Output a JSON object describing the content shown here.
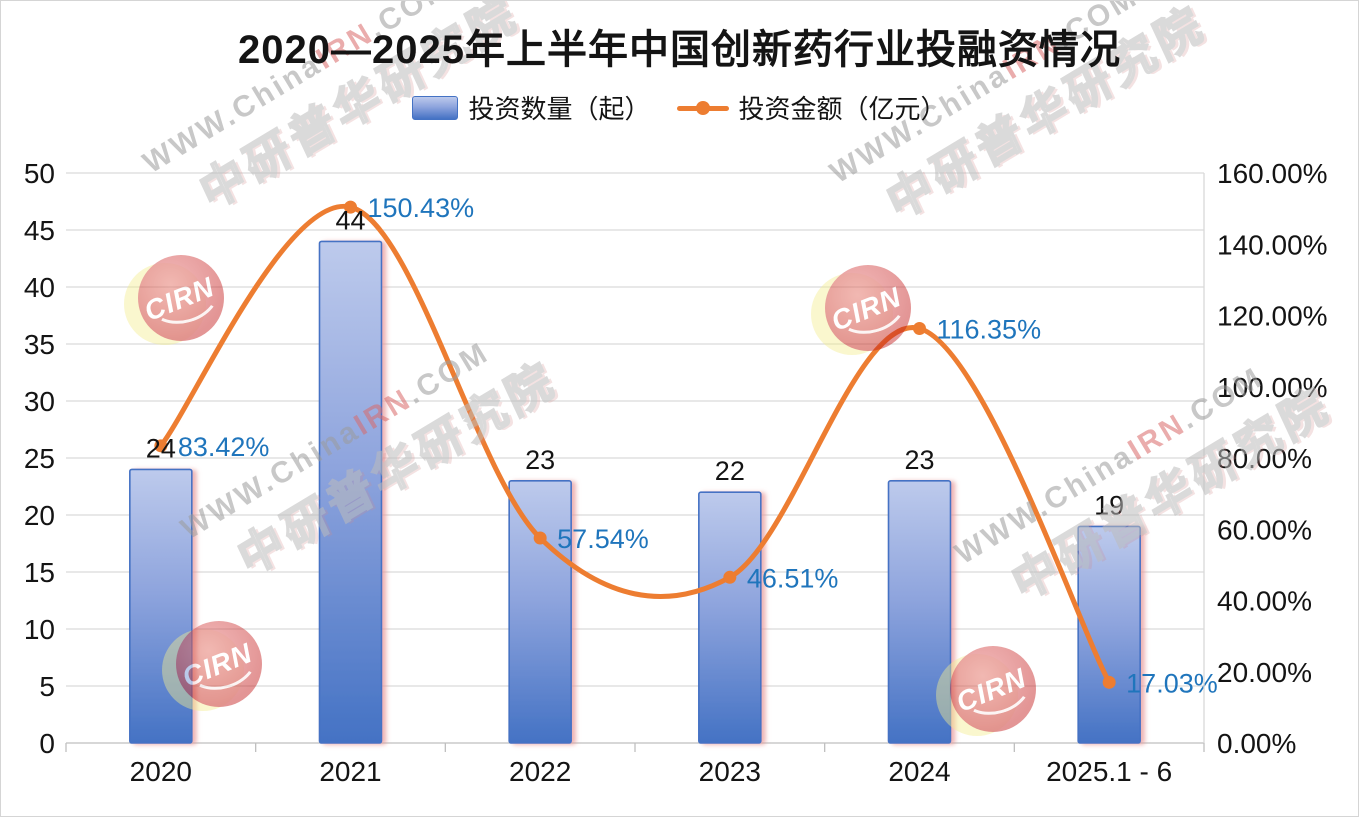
{
  "title": "2020—2025年上半年中国创新药行业投融资情况",
  "legend": {
    "bar_label": "投资数量（起）",
    "line_label": "投资金额（亿元）"
  },
  "colors": {
    "bar_top": "#bdcaec",
    "bar_bottom": "#4472c4",
    "bar_border": "#4472c4",
    "bar_glow": "#e89a9a",
    "line": "#ed7d31",
    "pct_label": "#1f75bc",
    "value_label": "#141414",
    "axis_text": "#141414",
    "gridline": "#d9d9d9",
    "axis_line": "#bfbfbf"
  },
  "watermark": {
    "en_prefix": "WWW.China",
    "en_red": "IRN",
    "en_suffix": ".COM",
    "cn": "中研普华研究院",
    "logo_text": "CIRN"
  },
  "chart_data": {
    "type": "bar",
    "subtype": "bar+smooth-line, dual axis",
    "categories": [
      "2020",
      "2021",
      "2022",
      "2023",
      "2024",
      "2025.1 - 6"
    ],
    "series": [
      {
        "name": "投资数量（起）",
        "type": "bar",
        "axis": "left",
        "values": [
          24,
          44,
          23,
          22,
          23,
          19
        ],
        "labels": [
          "24",
          "44",
          "23",
          "22",
          "23",
          "19"
        ]
      },
      {
        "name": "投资金额（亿元）",
        "type": "line",
        "axis": "right",
        "values": [
          83.42,
          150.43,
          57.54,
          46.51,
          116.35,
          17.03
        ],
        "labels": [
          "83.42%",
          "150.43%",
          "57.54%",
          "46.51%",
          "116.35%",
          "17.03%"
        ]
      }
    ],
    "left_axis": {
      "min": 0,
      "max": 50,
      "step": 5,
      "ticks": [
        "0",
        "5",
        "10",
        "15",
        "20",
        "25",
        "30",
        "35",
        "40",
        "45",
        "50"
      ]
    },
    "right_axis": {
      "min": 0,
      "max": 160,
      "step": 20,
      "ticks": [
        "0.00%",
        "20.00%",
        "40.00%",
        "60.00%",
        "80.00%",
        "100.00%",
        "120.00%",
        "140.00%",
        "160.00%"
      ]
    },
    "grid": true,
    "legend_position": "top",
    "title": "2020—2025年上半年中国创新药行业投融资情况"
  }
}
